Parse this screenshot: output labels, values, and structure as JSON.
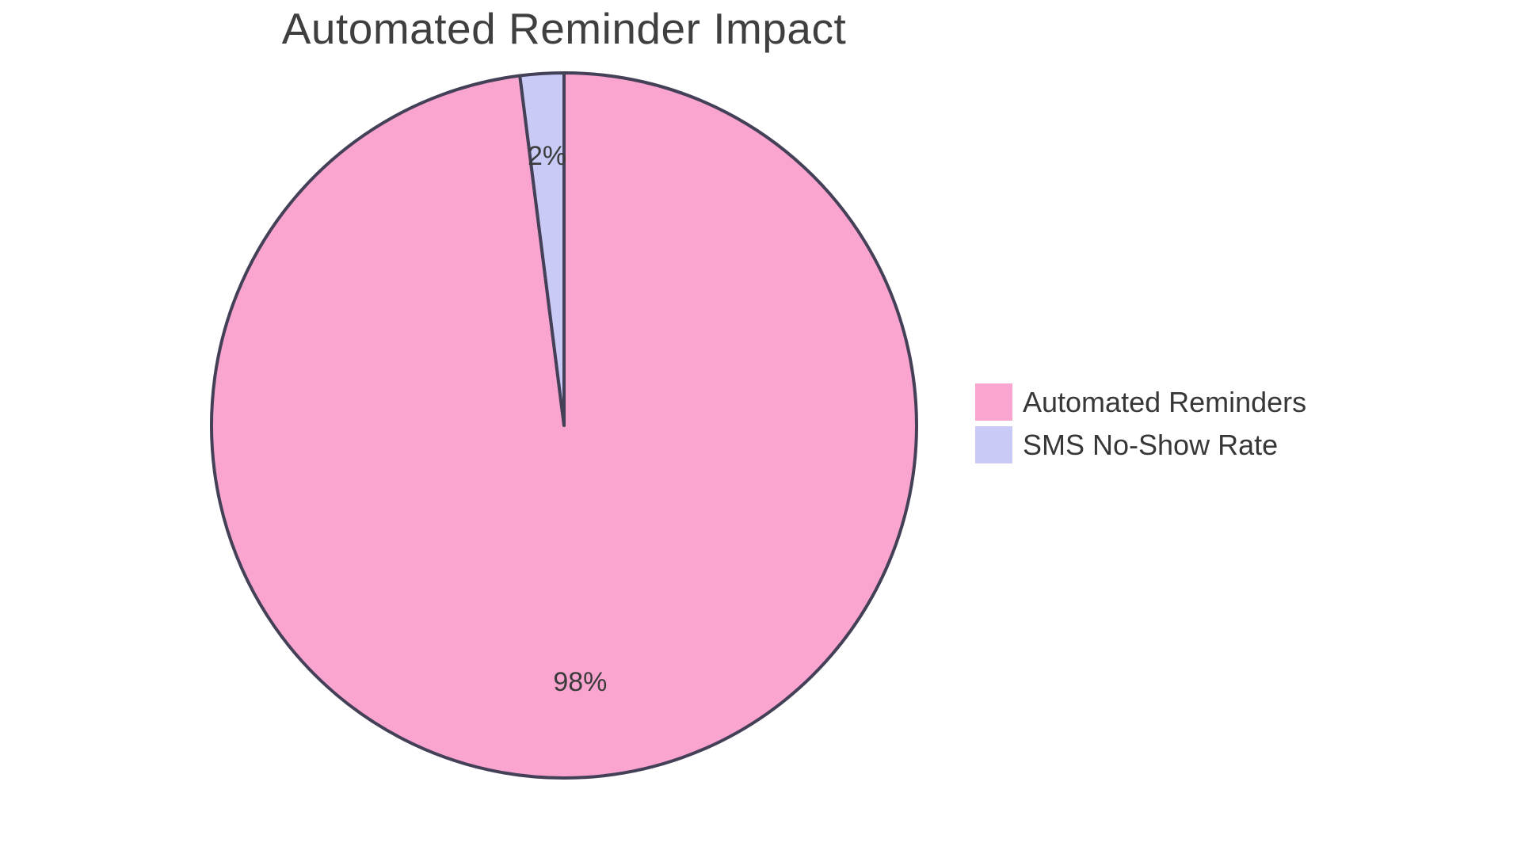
{
  "chart_data": {
    "type": "pie",
    "title": "Automated Reminder Impact",
    "categories": [
      "Automated Reminders",
      "SMS No-Show Rate"
    ],
    "values": [
      98,
      2
    ],
    "slice_labels": [
      "98%",
      "2%"
    ],
    "colors": [
      "#FAA5CF",
      "#C9CBF6"
    ],
    "stroke_color": "#434058",
    "label_color": "#3B3B3B",
    "title_color": "#3F3F3F",
    "start_angle_deg": -90,
    "direction": "clockwise",
    "legend": {
      "position": "right",
      "items": [
        {
          "label": "Automated Reminders",
          "color": "#FAA5CF"
        },
        {
          "label": "SMS No-Show Rate",
          "color": "#C9CBF6"
        }
      ]
    }
  }
}
